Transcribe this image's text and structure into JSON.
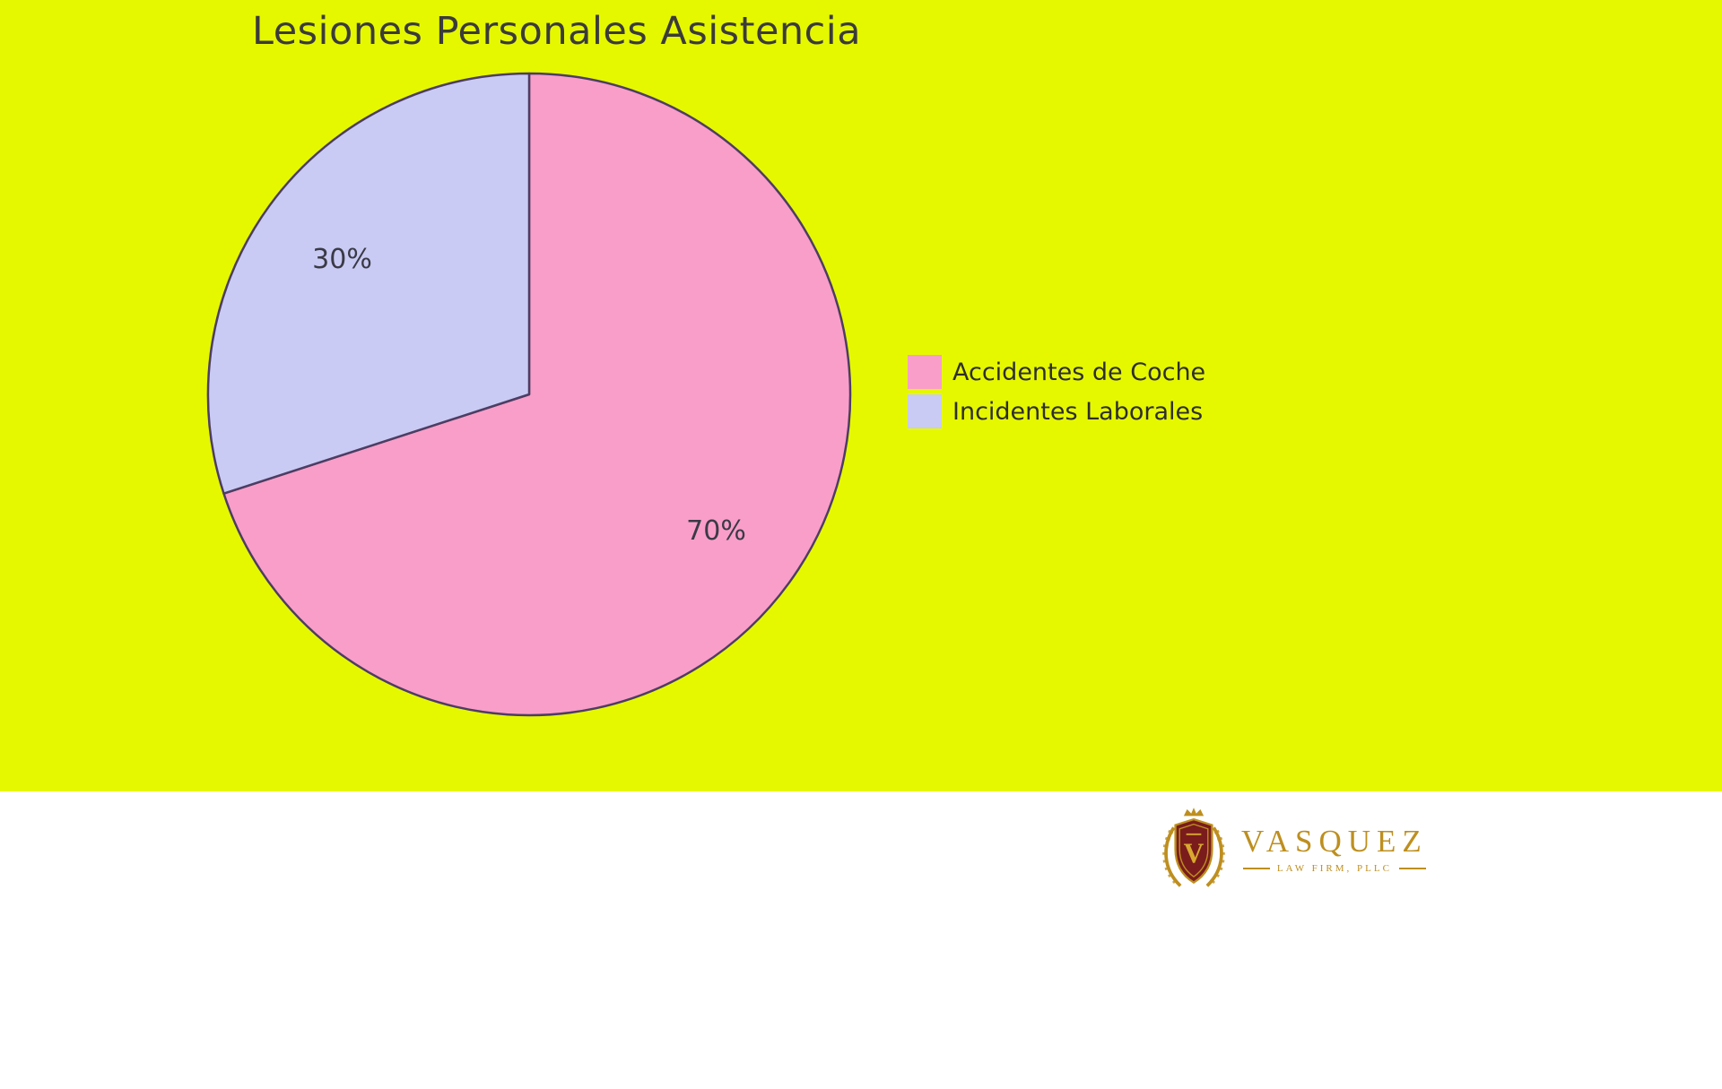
{
  "chart_data": {
    "type": "pie",
    "title": "Lesiones Personales Asistencia",
    "labels": [
      "Accidentes de Coche",
      "Incidentes Laborales"
    ],
    "values": [
      70,
      30
    ],
    "percent_labels": [
      "70%",
      "30%"
    ],
    "colors": [
      "#F99EC8",
      "#C9CBF4"
    ],
    "stroke_color": "#4D3D63",
    "start_angle_deg": 0,
    "legend_position": "right",
    "background": "#E6F800",
    "label_color": "#3A3A46"
  },
  "legend": {
    "items": [
      {
        "label": "Accidentes de Coche",
        "color": "#F99EC8"
      },
      {
        "label": "Incidentes Laborales",
        "color": "#C9CBF4"
      }
    ]
  },
  "branding": {
    "name": "VASQUEZ",
    "subtitle": "LAW FIRM, PLLC",
    "gold": "#BE8F1F",
    "maroon": "#7A1C1C"
  },
  "page": {
    "background": "#E6F800",
    "footer_background": "#FFFFFF",
    "text_color": "#3B3B3B"
  }
}
